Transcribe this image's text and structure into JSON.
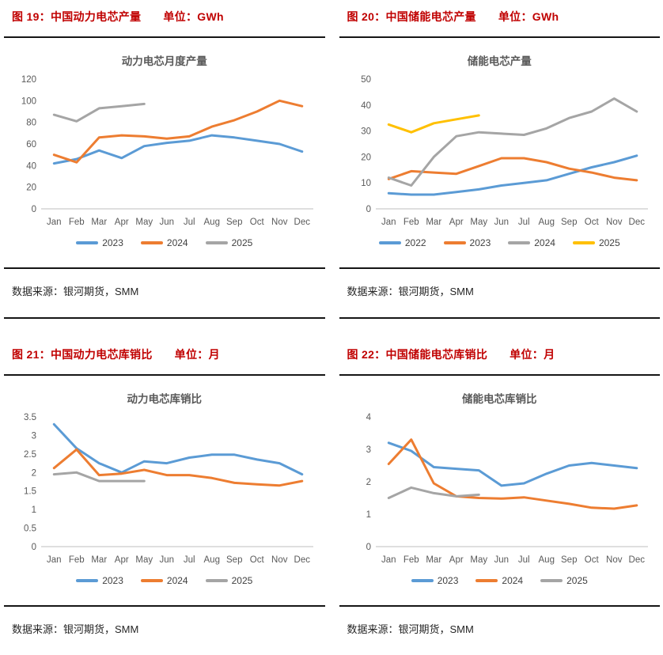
{
  "colors": {
    "accent_title": "#C00000",
    "chart_text": "#595959",
    "axis_line": "#BFBFBF",
    "series_blue": "#5B9BD5",
    "series_orange": "#ED7D31",
    "series_gray": "#A5A5A5",
    "series_yellow": "#FFC000"
  },
  "panels": [
    {
      "caption": "图 19：中国动力电芯产量",
      "unit": "单位：GWh",
      "source": "数据来源：银河期货，SMM"
    },
    {
      "caption": "图 20：中国储能电芯产量",
      "unit": "单位：GWh",
      "source": "数据来源：银河期货，SMM"
    },
    {
      "caption": "图 21：中国动力电芯库销比",
      "unit": "单位：月",
      "source": "数据来源：银河期货，SMM"
    },
    {
      "caption": "图 22：中国储能电芯库销比",
      "unit": "单位：月",
      "source": "数据来源：银河期货，SMM"
    }
  ],
  "chart_data": [
    {
      "type": "line",
      "title": "动力电芯月度产量",
      "categories": [
        "Jan",
        "Feb",
        "Mar",
        "Apr",
        "May",
        "Jun",
        "Jul",
        "Aug",
        "Sep",
        "Oct",
        "Nov",
        "Dec"
      ],
      "xlabel": "",
      "ylabel": "",
      "ylim": [
        0,
        120
      ],
      "ytick_step": 20,
      "grid": false,
      "legend_position": "bottom",
      "series": [
        {
          "name": "2023",
          "color": "#5B9BD5",
          "values": [
            42,
            46,
            54,
            47,
            58,
            61,
            63,
            68,
            66,
            63,
            60,
            53
          ]
        },
        {
          "name": "2024",
          "color": "#ED7D31",
          "values": [
            50,
            43,
            66,
            68,
            67,
            65,
            67,
            76,
            82,
            90,
            100,
            95
          ]
        },
        {
          "name": "2025",
          "color": "#A5A5A5",
          "values": [
            87,
            81,
            93,
            95,
            97,
            null,
            null,
            null,
            null,
            null,
            null,
            null
          ]
        }
      ]
    },
    {
      "type": "line",
      "title": "储能电芯产量",
      "categories": [
        "Jan",
        "Feb",
        "Mar",
        "Apr",
        "May",
        "Jun",
        "Jul",
        "Aug",
        "Sep",
        "Oct",
        "Nov",
        "Dec"
      ],
      "xlabel": "",
      "ylabel": "",
      "ylim": [
        0,
        50
      ],
      "ytick_step": 10,
      "grid": false,
      "legend_position": "bottom",
      "series": [
        {
          "name": "2022",
          "color": "#5B9BD5",
          "values": [
            6,
            5.5,
            5.5,
            6.5,
            7.5,
            9,
            10,
            11,
            13.5,
            16,
            18,
            20.5
          ]
        },
        {
          "name": "2023",
          "color": "#ED7D31",
          "values": [
            11.5,
            14.5,
            14,
            13.5,
            16.5,
            19.5,
            19.5,
            18,
            15.5,
            14,
            12,
            11
          ]
        },
        {
          "name": "2024",
          "color": "#A5A5A5",
          "values": [
            12,
            9,
            20,
            28,
            29.5,
            29,
            28.5,
            31,
            35,
            37.5,
            42.5,
            37.5
          ]
        },
        {
          "name": "2025",
          "color": "#FFC000",
          "values": [
            32.5,
            29.5,
            33,
            34.5,
            36,
            null,
            null,
            null,
            null,
            null,
            null,
            null
          ]
        }
      ]
    },
    {
      "type": "line",
      "title": "动力电芯库销比",
      "categories": [
        "Jan",
        "Feb",
        "Mar",
        "Apr",
        "May",
        "Jun",
        "Jul",
        "Aug",
        "Sep",
        "Oct",
        "Nov",
        "Dec"
      ],
      "xlabel": "",
      "ylabel": "",
      "ylim": [
        0,
        3.5
      ],
      "ytick_step": 0.5,
      "grid": false,
      "legend_position": "bottom",
      "series": [
        {
          "name": "2023",
          "color": "#5B9BD5",
          "values": [
            3.3,
            2.65,
            2.25,
            2.0,
            2.3,
            2.25,
            2.4,
            2.48,
            2.48,
            2.35,
            2.25,
            1.95
          ]
        },
        {
          "name": "2024",
          "color": "#ED7D31",
          "values": [
            2.12,
            2.62,
            1.93,
            1.97,
            2.07,
            1.93,
            1.93,
            1.85,
            1.72,
            1.68,
            1.65,
            1.77
          ]
        },
        {
          "name": "2025",
          "color": "#A5A5A5",
          "values": [
            1.95,
            2.0,
            1.77,
            1.77,
            1.77,
            null,
            null,
            null,
            null,
            null,
            null,
            null
          ]
        }
      ]
    },
    {
      "type": "line",
      "title": "储能电芯库销比",
      "categories": [
        "Jan",
        "Feb",
        "Mar",
        "Apr",
        "May",
        "Jun",
        "Jul",
        "Aug",
        "Sep",
        "Oct",
        "Nov",
        "Dec"
      ],
      "xlabel": "",
      "ylabel": "",
      "ylim": [
        0,
        4
      ],
      "ytick_step": 1,
      "grid": false,
      "legend_position": "bottom",
      "series": [
        {
          "name": "2023",
          "color": "#5B9BD5",
          "values": [
            3.2,
            2.95,
            2.45,
            2.4,
            2.35,
            1.88,
            1.95,
            2.25,
            2.5,
            2.58,
            2.5,
            2.42
          ]
        },
        {
          "name": "2024",
          "color": "#ED7D31",
          "values": [
            2.55,
            3.3,
            1.95,
            1.55,
            1.5,
            1.48,
            1.52,
            1.42,
            1.32,
            1.2,
            1.17,
            1.27
          ]
        },
        {
          "name": "2025",
          "color": "#A5A5A5",
          "values": [
            1.5,
            1.82,
            1.65,
            1.55,
            1.6,
            null,
            null,
            null,
            null,
            null,
            null,
            null
          ]
        }
      ]
    }
  ]
}
